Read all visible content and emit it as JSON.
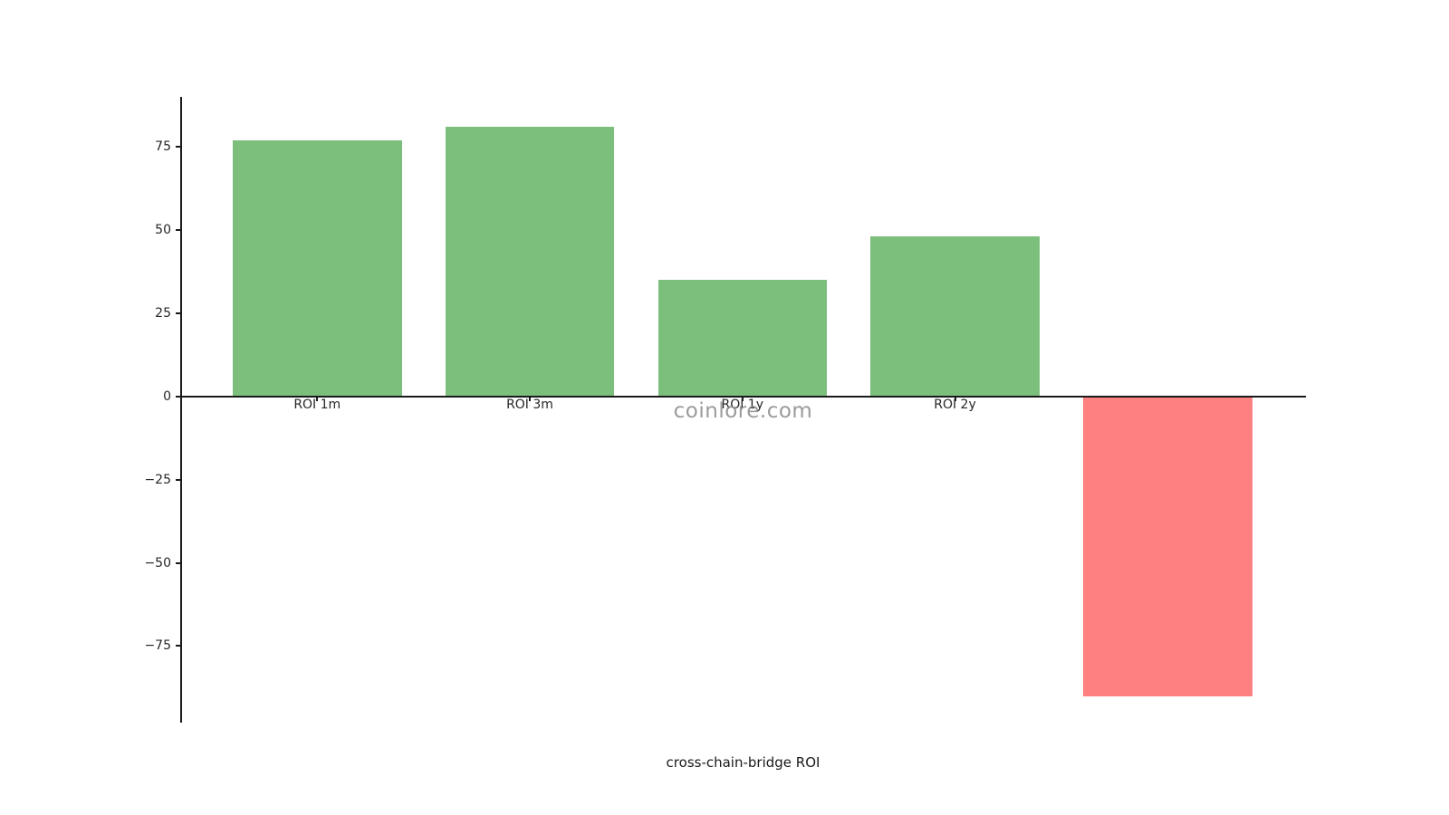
{
  "watermark": "coinlore.com",
  "chart_data": {
    "type": "bar",
    "title": "cross-chain-bridge ROI",
    "categories": [
      "ROI 1m",
      "ROI 3m",
      "ROI 1y",
      "ROI 2y",
      ""
    ],
    "values": [
      77,
      81,
      35,
      48,
      -90
    ],
    "positive_color": "#7cbf7c",
    "negative_color": "#ff8080",
    "axis_color": "#1a1a1a",
    "tick_text_color": "#262626",
    "watermark_color": "#8a8a8a",
    "yticks": [
      75,
      50,
      25,
      0,
      -25,
      -50,
      -75
    ],
    "ylim": [
      -98,
      90
    ],
    "xlabel": "",
    "ylabel": "",
    "grid": false,
    "legend": "none"
  }
}
